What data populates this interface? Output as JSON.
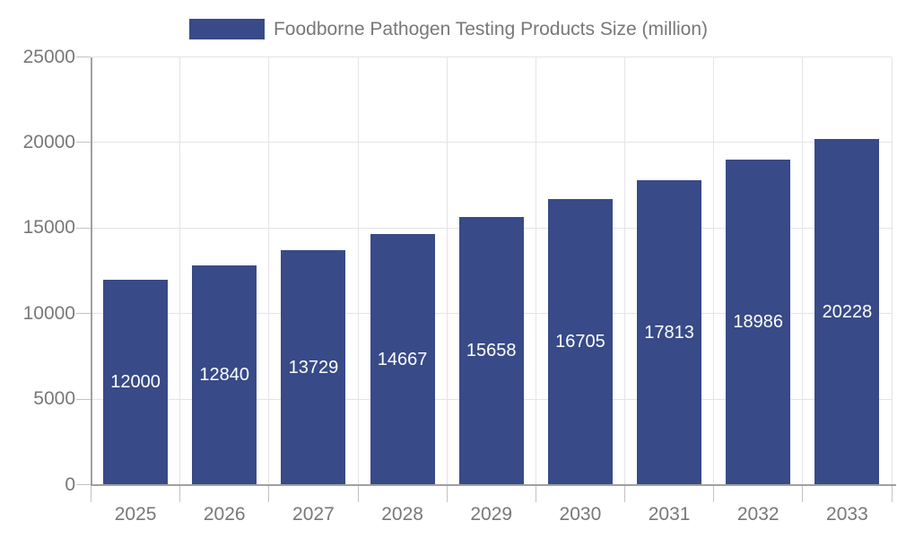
{
  "legend": {
    "label": "Foodborne Pathogen Testing Products Size (million)"
  },
  "chart_data": {
    "type": "bar",
    "title": "Foodborne Pathogen Testing Products Size (million)",
    "categories": [
      "2025",
      "2026",
      "2027",
      "2028",
      "2029",
      "2030",
      "2031",
      "2032",
      "2033"
    ],
    "values": [
      12000,
      12840,
      13729,
      14667,
      15658,
      16705,
      17813,
      18986,
      20228
    ],
    "xlabel": "",
    "ylabel": "",
    "ylim": [
      0,
      25000
    ],
    "yticks": [
      0,
      5000,
      10000,
      15000,
      20000,
      25000
    ],
    "grid": true,
    "legend_position": "top",
    "value_labels": "inside-center",
    "colors": {
      "bar": "#384A87",
      "value_text": "#ffffff",
      "axis_text": "#77787a",
      "gridline": "#e4e4e8",
      "axis_line": "#a0a0a3",
      "tick": "#c2c2c6",
      "background": "#ffffff"
    }
  }
}
